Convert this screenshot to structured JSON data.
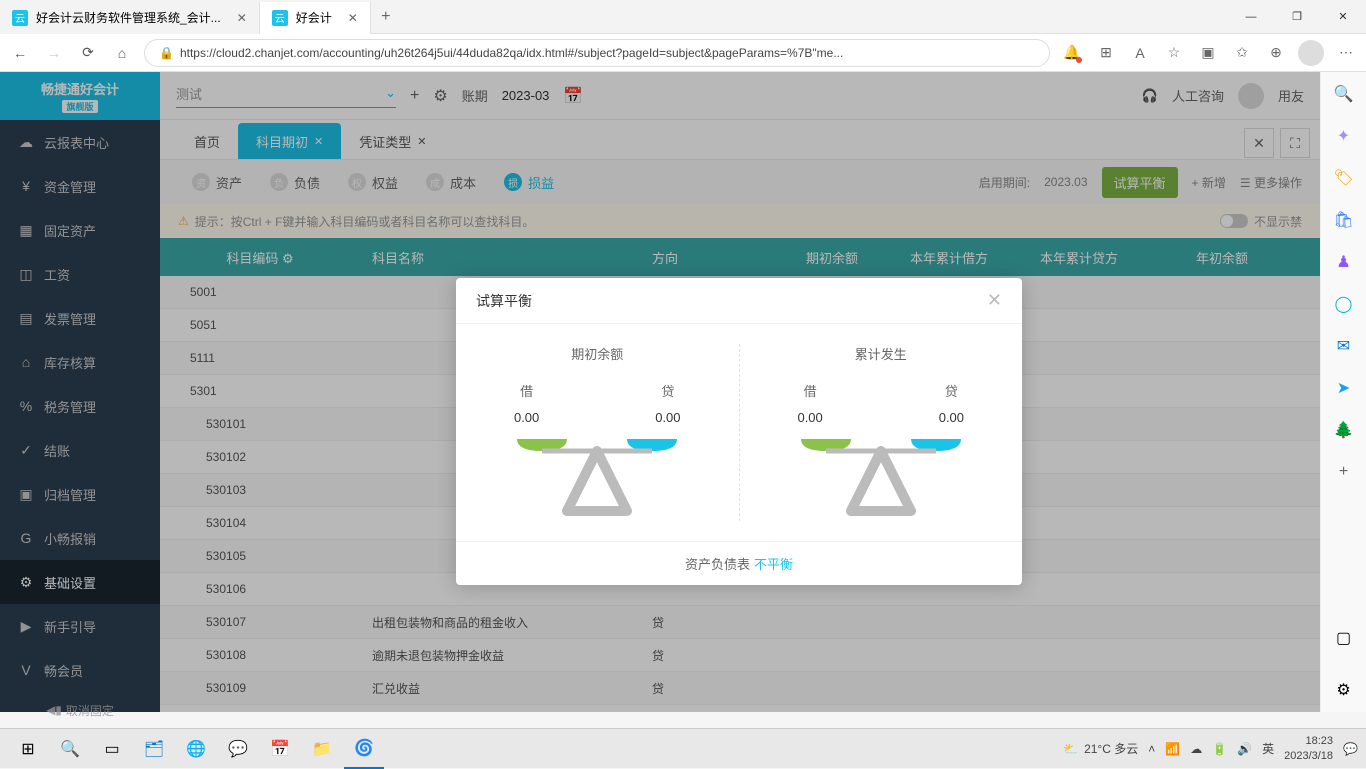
{
  "browser": {
    "tabs": [
      {
        "title": "好会计云财务软件管理系统_会计...",
        "active": false
      },
      {
        "title": "好会计",
        "active": true
      }
    ],
    "url": "https://cloud2.chanjet.com/accounting/uh26t264j5ui/44duda82qa/idx.html#/subject?pageId=subject&pageParams=%7B\"me...",
    "window": {
      "minimize": "—",
      "maximize": "❐",
      "close": "✕"
    }
  },
  "logo": {
    "text": "畅捷通好会计",
    "sub": "旗舰版"
  },
  "sidebar": {
    "items": [
      {
        "label": "云报表中心",
        "icon": "☁"
      },
      {
        "label": "资金管理",
        "icon": "¥"
      },
      {
        "label": "固定资产",
        "icon": "▦"
      },
      {
        "label": "工资",
        "icon": "◫"
      },
      {
        "label": "发票管理",
        "icon": "▤"
      },
      {
        "label": "库存核算",
        "icon": "⌂"
      },
      {
        "label": "税务管理",
        "icon": "%"
      },
      {
        "label": "结账",
        "icon": "✓"
      },
      {
        "label": "归档管理",
        "icon": "▣"
      },
      {
        "label": "小畅报销",
        "icon": "G"
      },
      {
        "label": "基础设置",
        "icon": "⚙"
      },
      {
        "label": "新手引导",
        "icon": "▶"
      },
      {
        "label": "畅会员",
        "icon": "V"
      }
    ],
    "bottom": "取消固定"
  },
  "topbar": {
    "company": "测试",
    "period_label": "账期",
    "period": "2023-03",
    "consult": "人工咨询",
    "user": "用友"
  },
  "tabs": {
    "items": [
      {
        "label": "首页",
        "closable": false
      },
      {
        "label": "科目期初",
        "closable": true,
        "active": true
      },
      {
        "label": "凭证类型",
        "closable": true
      }
    ]
  },
  "subtabs": {
    "items": [
      {
        "icon": "资",
        "label": "资产"
      },
      {
        "icon": "负",
        "label": "负债"
      },
      {
        "icon": "权",
        "label": "权益"
      },
      {
        "icon": "成",
        "label": "成本"
      },
      {
        "icon": "损",
        "label": "损益",
        "active": true
      }
    ],
    "enable_period_label": "启用期间:",
    "enable_period": "2023.03",
    "trial_btn": "试算平衡",
    "add_btn": "新增",
    "more_btn": "更多操作"
  },
  "hint": {
    "text": "提示：按Ctrl + F键并输入科目编码或者科目名称可以查找科目。",
    "right": "不显示禁"
  },
  "table": {
    "headers": [
      "科目编码",
      "科目名称",
      "方向",
      "期初余额",
      "本年累计借方",
      "本年累计贷方",
      "年初余额"
    ],
    "rows": [
      {
        "code": "5001",
        "name": "",
        "dir": "",
        "indent": false
      },
      {
        "code": "5051",
        "name": "",
        "dir": "",
        "indent": false
      },
      {
        "code": "5111",
        "name": "",
        "dir": "",
        "indent": false
      },
      {
        "code": "5301",
        "name": "",
        "dir": "",
        "indent": false
      },
      {
        "code": "530101",
        "name": "",
        "dir": "",
        "indent": true
      },
      {
        "code": "530102",
        "name": "",
        "dir": "",
        "indent": true
      },
      {
        "code": "530103",
        "name": "",
        "dir": "",
        "indent": true
      },
      {
        "code": "530104",
        "name": "",
        "dir": "",
        "indent": true
      },
      {
        "code": "530105",
        "name": "",
        "dir": "",
        "indent": true
      },
      {
        "code": "530106",
        "name": "",
        "dir": "",
        "indent": true
      },
      {
        "code": "530107",
        "name": "出租包装物和商品的租金收入",
        "dir": "贷",
        "indent": true
      },
      {
        "code": "530108",
        "name": "逾期未退包装物押金收益",
        "dir": "贷",
        "indent": true
      },
      {
        "code": "530109",
        "name": "汇兑收益",
        "dir": "贷",
        "indent": true
      }
    ]
  },
  "modal": {
    "title": "试算平衡",
    "left": {
      "title": "期初余额",
      "debit_label": "借",
      "credit_label": "贷",
      "debit_val": "0.00",
      "credit_val": "0.00",
      "debit_color": "#8bc34a",
      "credit_color": "#1cc3e8"
    },
    "right": {
      "title": "累计发生",
      "debit_label": "借",
      "credit_label": "贷",
      "debit_val": "0.00",
      "credit_val": "0.00",
      "debit_color": "#8bc34a",
      "credit_color": "#1cc3e8"
    },
    "footer_text": "资产负债表",
    "footer_link": "不平衡"
  },
  "taskbar": {
    "weather": "21°C 多云",
    "ime": "英",
    "time": "18:23",
    "date": "2023/3/18"
  },
  "colors": {
    "primary": "#1cc3e8",
    "sidebar_bg": "#2c3e50",
    "green": "#7cb342",
    "teal_header": "#3ca9a9"
  }
}
